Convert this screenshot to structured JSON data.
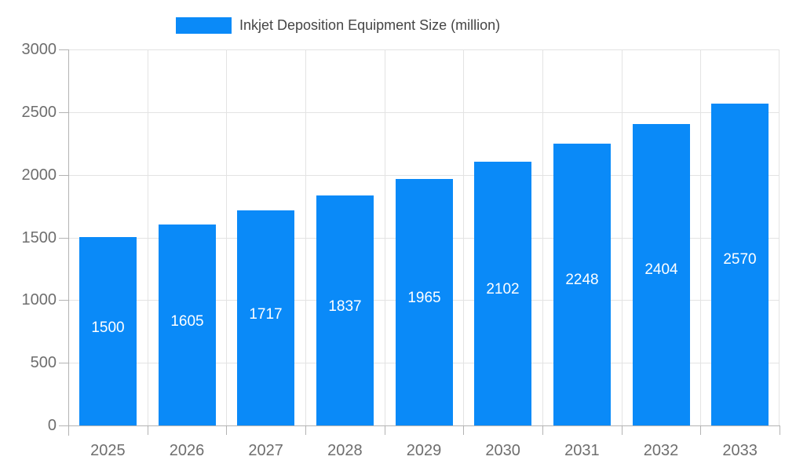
{
  "legend": {
    "label": "Inkjet Deposition Equipment Size (million)"
  },
  "colors": {
    "bar": "#0a8af8",
    "bar_label_text": "#ffffff",
    "axis_line": "#b3b3b3",
    "gridline": "#e3e3e3",
    "tick_text": "#6e6e6e",
    "legend_text": "#454545"
  },
  "chart_data": {
    "type": "bar",
    "title": "",
    "xlabel": "",
    "ylabel": "",
    "categories": [
      "2025",
      "2026",
      "2027",
      "2028",
      "2029",
      "2030",
      "2031",
      "2032",
      "2033"
    ],
    "values": [
      1500,
      1605,
      1717,
      1837,
      1965,
      2102,
      2248,
      2404,
      2570
    ],
    "bar_value_labels": [
      "1500",
      "1605",
      "1717",
      "1837",
      "1965",
      "2102",
      "2248",
      "2404",
      "2570"
    ],
    "legend_entries": [
      "Inkjet Deposition Equipment Size (million)"
    ],
    "legend_position": "top",
    "ylim": [
      0,
      3000
    ],
    "ytick_step": 500,
    "ytick_labels": [
      "0",
      "500",
      "1000",
      "1500",
      "2000",
      "2500",
      "3000"
    ],
    "grid": true
  }
}
